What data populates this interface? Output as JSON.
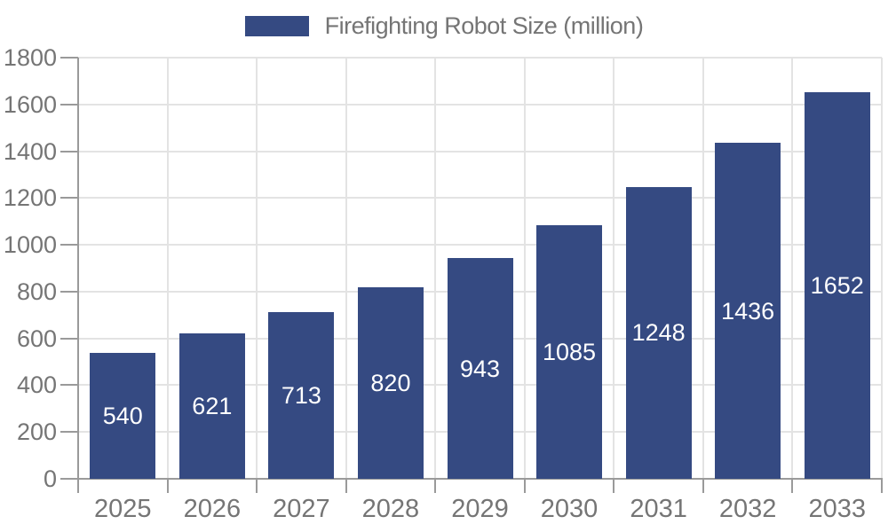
{
  "legend": {
    "label": "Firefighting Robot Size (million)"
  },
  "chart_data": {
    "type": "bar",
    "title": "Firefighting Robot Size (million)",
    "categories": [
      "2025",
      "2026",
      "2027",
      "2028",
      "2029",
      "2030",
      "2031",
      "2032",
      "2033"
    ],
    "values": [
      540,
      621,
      713,
      820,
      943,
      1085,
      1248,
      1436,
      1652
    ],
    "xlabel": "",
    "ylabel": "",
    "ylim": [
      0,
      1800
    ],
    "ytick_step": 200,
    "ytick_labels": [
      "0",
      "200",
      "400",
      "600",
      "800",
      "1000",
      "1200",
      "1400",
      "1600",
      "1800"
    ],
    "grid": true,
    "legend_position": "top-center",
    "colors": {
      "bar": "#354A82",
      "grid": "#E3E3E3",
      "axis": "#9A9A9A",
      "axis_label": "#757575",
      "value_label": "#FFFFFF"
    }
  }
}
